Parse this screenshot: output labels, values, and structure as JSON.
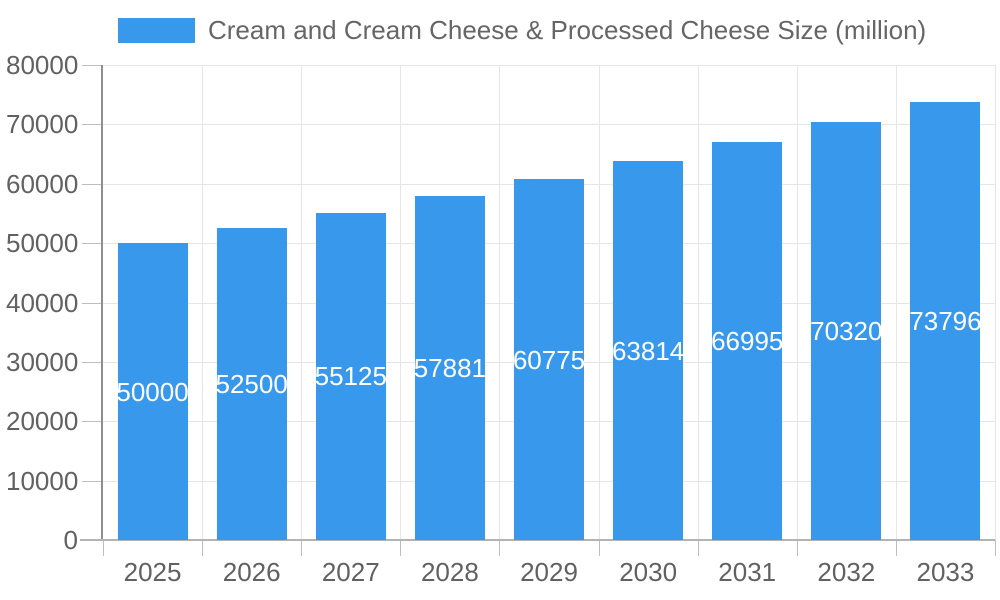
{
  "chart_data": {
    "type": "bar",
    "title": "Cream and Cream Cheese & Processed Cheese Size (million)",
    "categories": [
      "2025",
      "2026",
      "2027",
      "2028",
      "2029",
      "2030",
      "2031",
      "2032",
      "2033"
    ],
    "values": [
      50000,
      52500,
      55125,
      57881,
      60775,
      63814,
      66995,
      70320,
      73796
    ],
    "series": [
      {
        "name": "Cream and Cream Cheese & Processed Cheese Size (million)",
        "values": [
          50000,
          52500,
          55125,
          57881,
          60775,
          63814,
          66995,
          70320,
          73796
        ]
      }
    ],
    "xlabel": "",
    "ylabel": "",
    "ylim": [
      0,
      80000
    ],
    "y_ticks": [
      0,
      10000,
      20000,
      30000,
      40000,
      50000,
      60000,
      70000,
      80000
    ],
    "grid": true,
    "legend_position": "top",
    "bar_labels_shown": true,
    "colors": {
      "bar": "#3898EC",
      "bar_label": "#FFFFFF",
      "grid": "#E6E6E6",
      "tick": "#BDBDBD",
      "y_axis_line": "#8F8F8F",
      "x_axis_line": "#B3B3B3",
      "axis_label": "#616161",
      "legend_text": "#666666"
    }
  }
}
